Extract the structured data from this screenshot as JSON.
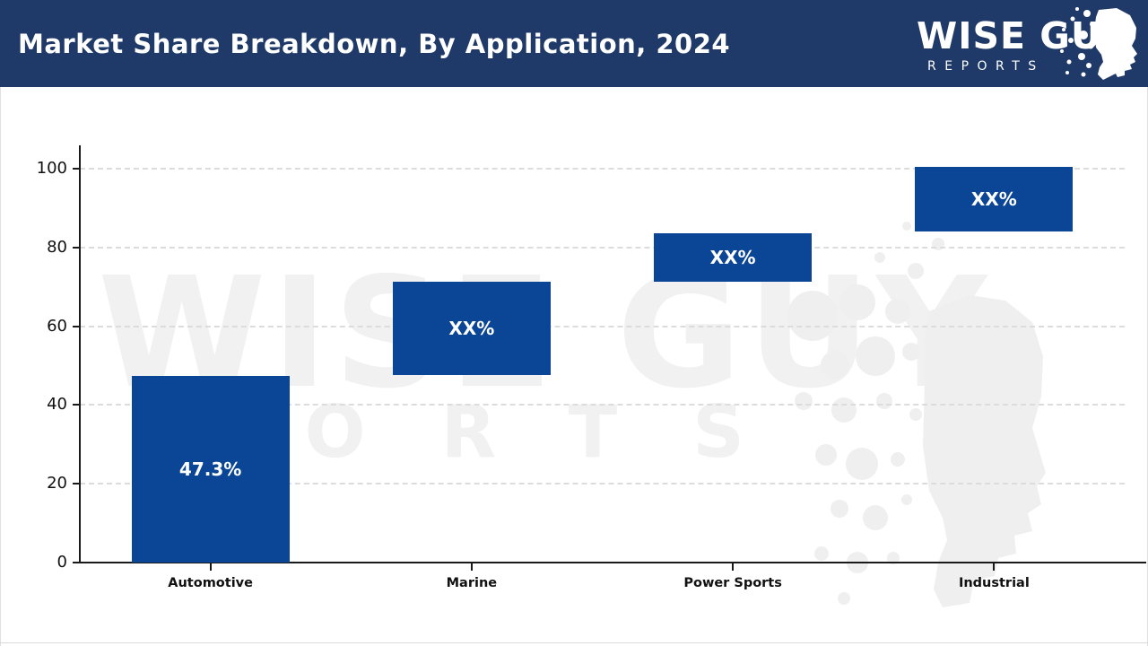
{
  "header": {
    "title": "Market Share Breakdown, By Application, 2024",
    "bg_color": "#1f3a68",
    "logo": {
      "primary": "WISE GUY",
      "secondary": "REPORTS"
    }
  },
  "watermark": {
    "primary": "WISE GUY",
    "secondary": "PORTS"
  },
  "chart_data": {
    "type": "bar",
    "variant": "waterfall",
    "title": "Market Share Breakdown, By Application, 2024",
    "categories": [
      "Automotive",
      "Marine",
      "Power Sports",
      "Industrial"
    ],
    "segments": [
      {
        "category": "Automotive",
        "start": 0,
        "end": 47.3,
        "label": "47.3%"
      },
      {
        "category": "Marine",
        "start": 47.6,
        "end": 71.3,
        "label": "XX%"
      },
      {
        "category": "Power Sports",
        "start": 71.4,
        "end": 83.7,
        "label": "XX%"
      },
      {
        "category": "Industrial",
        "start": 84.0,
        "end": 100.5,
        "label": "XX%"
      }
    ],
    "bar_color": "#0a4596",
    "bar_label_color": "#ffffff",
    "yticks": [
      0,
      20,
      40,
      60,
      80,
      100
    ],
    "ylim": [
      0,
      105
    ],
    "xlabel": "",
    "ylabel": "",
    "grid": {
      "horizontal": true,
      "style": "dashed",
      "color": "#dcdcdc"
    },
    "legend": "none"
  }
}
